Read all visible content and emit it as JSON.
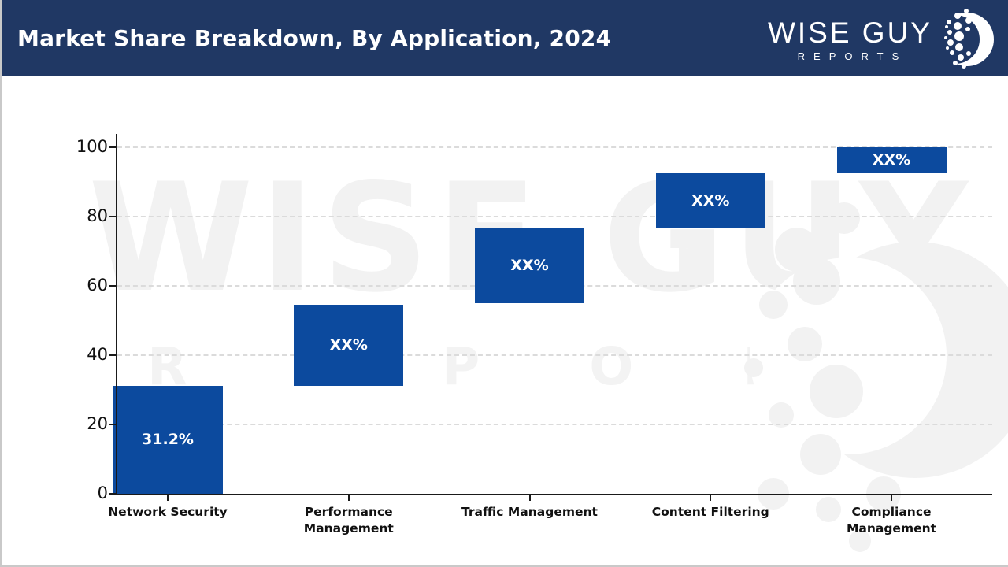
{
  "header": {
    "title": "Market Share Breakdown, By Application, 2024",
    "bg_color": "#203864",
    "logo": {
      "line1": "WISE GUY",
      "line2": "REPORTS"
    }
  },
  "watermark": {
    "line1": "WISE GUY",
    "line2": "R E P O R T S"
  },
  "chart_data": {
    "type": "bar",
    "subtype": "waterfall",
    "title": "Market Share Breakdown, By Application, 2024",
    "categories": [
      "Network Security",
      "Performance Management",
      "Traffic Management",
      "Content Filtering",
      "Compliance Management"
    ],
    "segments": [
      {
        "category": "Network Security",
        "start": 0,
        "end": 31.2,
        "label": "31.2%"
      },
      {
        "category": "Performance Management",
        "start": 31.2,
        "end": 54.4,
        "label": "XX%"
      },
      {
        "category": "Traffic Management",
        "start": 55.0,
        "end": 76.6,
        "label": "XX%"
      },
      {
        "category": "Content Filtering",
        "start": 76.6,
        "end": 92.5,
        "label": "XX%"
      },
      {
        "category": "Compliance Management",
        "start": 92.5,
        "end": 99.8,
        "label": "XX%"
      }
    ],
    "y_ticks": [
      0,
      20,
      40,
      60,
      80,
      100
    ],
    "ylim": [
      0,
      104
    ],
    "xlabel": "",
    "ylabel": "",
    "grid": "horizontal-dashed",
    "legend": "none",
    "bar_color": "#0c4a9e",
    "bar_label_color": "#ffffff",
    "gridline_color": "#dbdbdb"
  }
}
